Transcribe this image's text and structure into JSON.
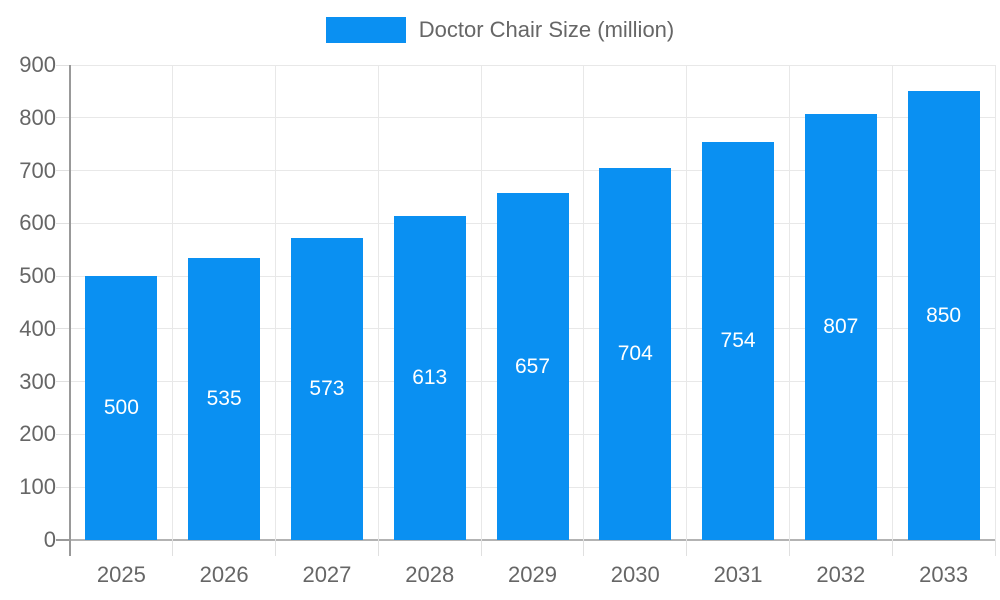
{
  "chart_data": {
    "type": "bar",
    "title": "",
    "legend": "Doctor Chair Size (million)",
    "legend_position": "top",
    "categories": [
      "2025",
      "2026",
      "2027",
      "2028",
      "2029",
      "2030",
      "2031",
      "2032",
      "2033"
    ],
    "series": [
      {
        "name": "Doctor Chair Size (million)",
        "values": [
          500,
          535,
          573,
          613,
          657,
          704,
          754,
          807,
          850
        ]
      }
    ],
    "xlabel": "",
    "ylabel": "",
    "ylim": [
      0,
      900
    ],
    "ytick_step": 100,
    "grid": true,
    "colors": {
      "bar": "#0a90f2",
      "value_label": "#ffffff",
      "axis_text": "#666666",
      "gridline": "#e8e8e8",
      "baseline": "#b3b3b3",
      "axis_line": "#999999",
      "minor_tick": "#e0e0e0"
    }
  }
}
